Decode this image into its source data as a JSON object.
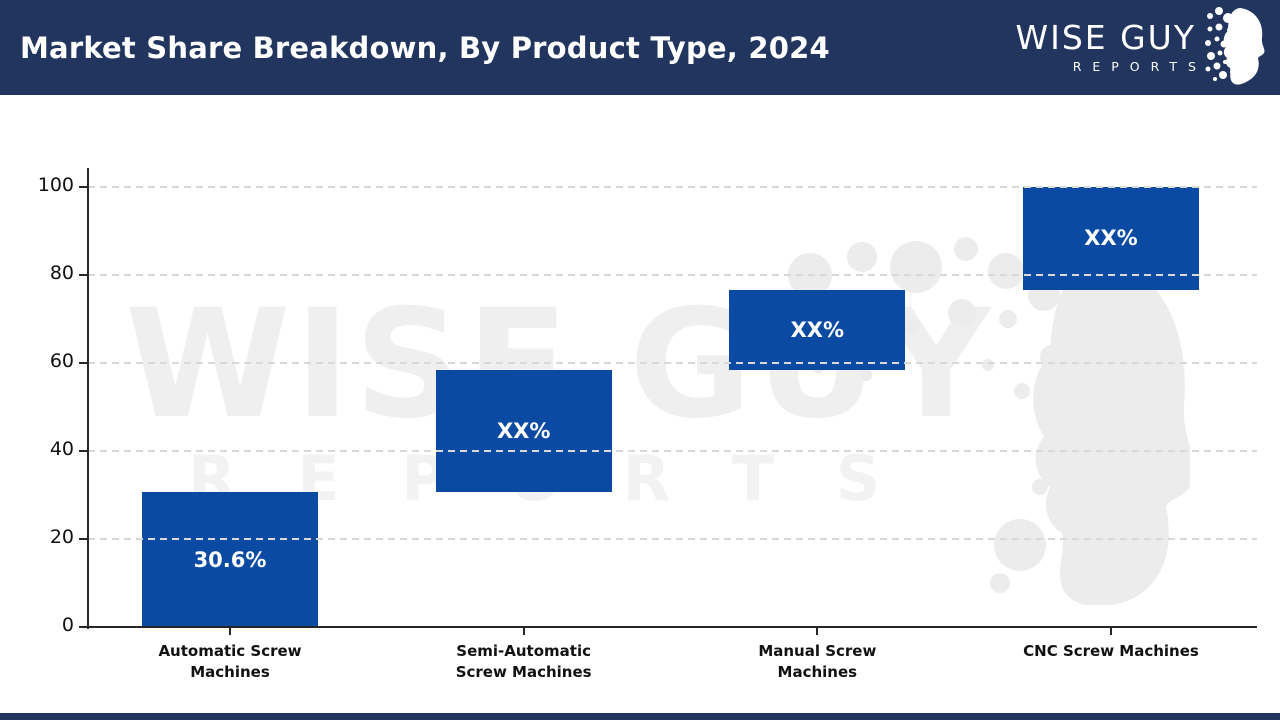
{
  "header": {
    "title": "Market Share Breakdown, By Product Type, 2024",
    "logo": {
      "wordmark": "WISE GUY",
      "subtitle": "REPORTS"
    }
  },
  "watermark": {
    "wordmark": "WISE GUY",
    "subtitle": "R E P O R T S"
  },
  "colors": {
    "header_bg": "#21355e",
    "bar": "#0b4aa2",
    "grid": "#d9d9d9",
    "axis": "#262626",
    "watermark": "#efefef"
  },
  "chart_data": {
    "type": "bar",
    "variant": "waterfall",
    "title": "Market Share Breakdown, By Product Type, 2024",
    "categories": [
      "Automatic Screw Machines",
      "Semi-Automatic Screw Machines",
      "Manual Screw Machines",
      "CNC Screw Machines"
    ],
    "category_lines": [
      [
        "Automatic Screw",
        "Machines"
      ],
      [
        "Semi-Automatic",
        "Screw Machines"
      ],
      [
        "Manual Screw",
        "Machines"
      ],
      [
        "CNC Screw Machines"
      ]
    ],
    "segments": [
      {
        "category": "Automatic Screw Machines",
        "start": 0,
        "end": 30.6,
        "label": "30.6%"
      },
      {
        "category": "Semi-Automatic Screw Machines",
        "start": 30.6,
        "end": 58.5,
        "label": "XX%"
      },
      {
        "category": "Manual Screw Machines",
        "start": 58.5,
        "end": 76.7,
        "label": "XX%"
      },
      {
        "category": "CNC Screw Machines",
        "start": 76.7,
        "end": 100,
        "label": "XX%"
      }
    ],
    "ylim": [
      0,
      100
    ],
    "yticks": [
      0,
      20,
      40,
      60,
      80,
      100
    ],
    "grid": "horizontal-dashed",
    "grid_above_bars": true,
    "legend": "none",
    "xlabel": "",
    "ylabel": ""
  }
}
